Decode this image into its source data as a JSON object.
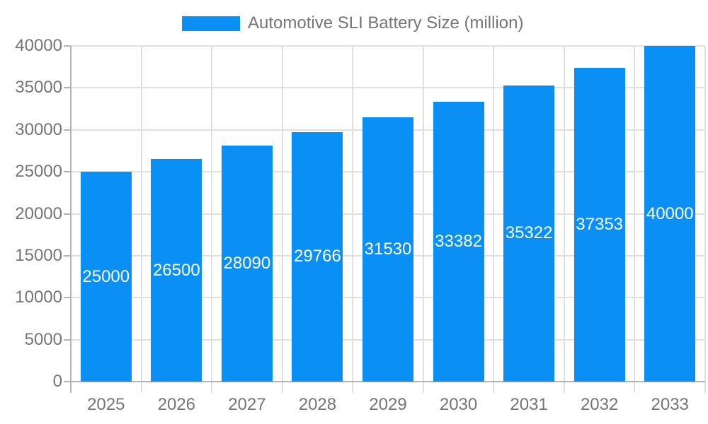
{
  "legend": {
    "label": "Automotive SLI Battery Size (million)"
  },
  "chart_data": {
    "type": "bar",
    "title": "Automotive SLI Battery Size (million)",
    "categories": [
      "2025",
      "2026",
      "2027",
      "2028",
      "2029",
      "2030",
      "2031",
      "2032",
      "2033"
    ],
    "values": [
      25000,
      26500,
      28090,
      29766,
      31530,
      33382,
      35322,
      37353,
      40000
    ],
    "value_labels": [
      "25000",
      "26500",
      "28090",
      "29766",
      "31530",
      "33382",
      "35322",
      "37353",
      "40000"
    ],
    "xlabel": "",
    "ylabel": "",
    "ylim": [
      0,
      40000
    ],
    "yticks": [
      0,
      5000,
      10000,
      15000,
      20000,
      25000,
      30000,
      35000,
      40000
    ],
    "ytick_labels": [
      "0",
      "5000",
      "10000",
      "15000",
      "20000",
      "25000",
      "30000",
      "35000",
      "40000"
    ],
    "grid": "on",
    "legend_position": "top-center",
    "colors": {
      "bar": "#0a90f4",
      "value_label": "#ffffff",
      "axis_label": "#757575",
      "gridline": "#e0e0e0",
      "axis_line": "#b3b3b3",
      "background": "#ffffff"
    }
  }
}
